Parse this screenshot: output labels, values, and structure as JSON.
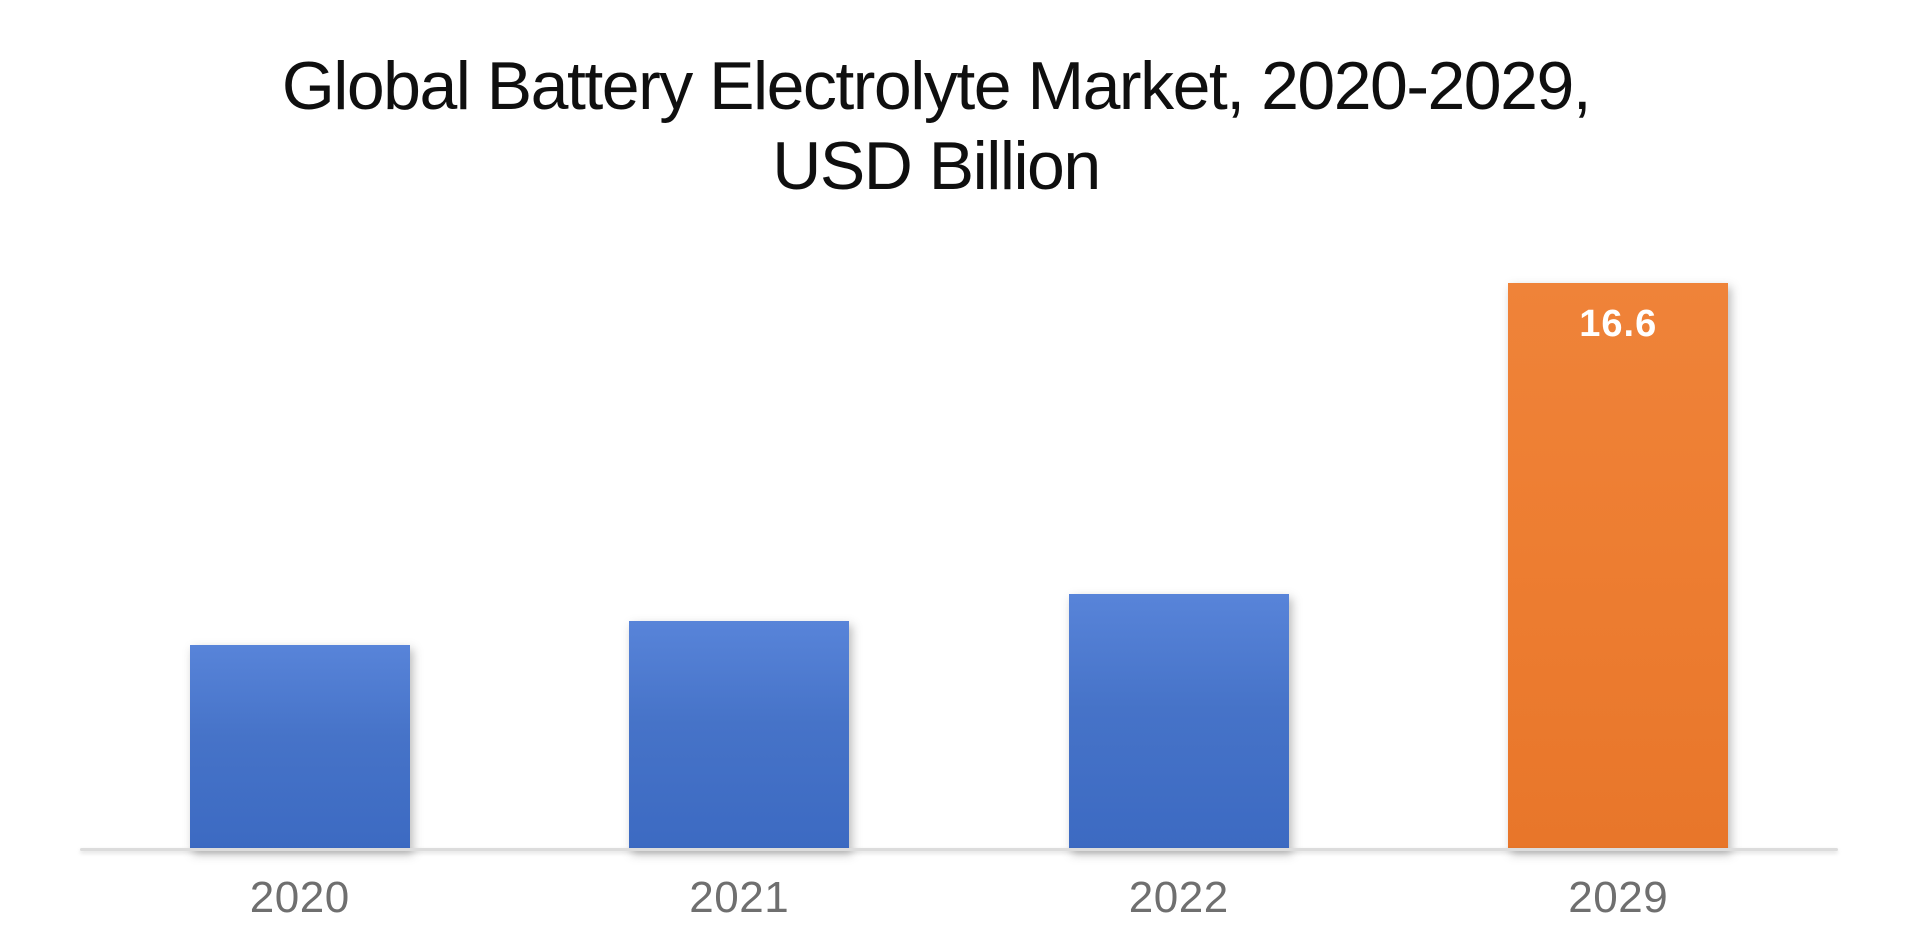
{
  "chart_data": {
    "type": "bar",
    "title": "Global Battery Electrolyte Market, 2020-2029, USD Billion",
    "title_lines": [
      "Global Battery Electrolyte Market, 2020-2029,",
      "USD Billion"
    ],
    "categories": [
      "2020",
      "2021",
      "2022",
      "2029"
    ],
    "values": [
      6.0,
      6.7,
      7.5,
      16.6
    ],
    "data_labels": [
      "",
      "",
      "",
      "16.6"
    ],
    "bar_styles": [
      "blue",
      "blue",
      "blue",
      "orange"
    ],
    "xlabel": "",
    "ylabel": "",
    "ylim": [
      0,
      17.5
    ],
    "gridlines": false,
    "y_axis_visible": false,
    "legend_position": "none",
    "colors": {
      "blue_bar": "#4472C4",
      "blue_bar_gradient_top": "#5884D9",
      "blue_bar_gradient_bottom": "#3C6AC2",
      "orange_bar": "#ED7D31",
      "data_label_text": "#FFFFFF",
      "axis_line": "#DCDCDC",
      "category_label_text": "#6F6F6F",
      "title_text": "#0F0F0F",
      "background": "#FFFFFF"
    }
  }
}
